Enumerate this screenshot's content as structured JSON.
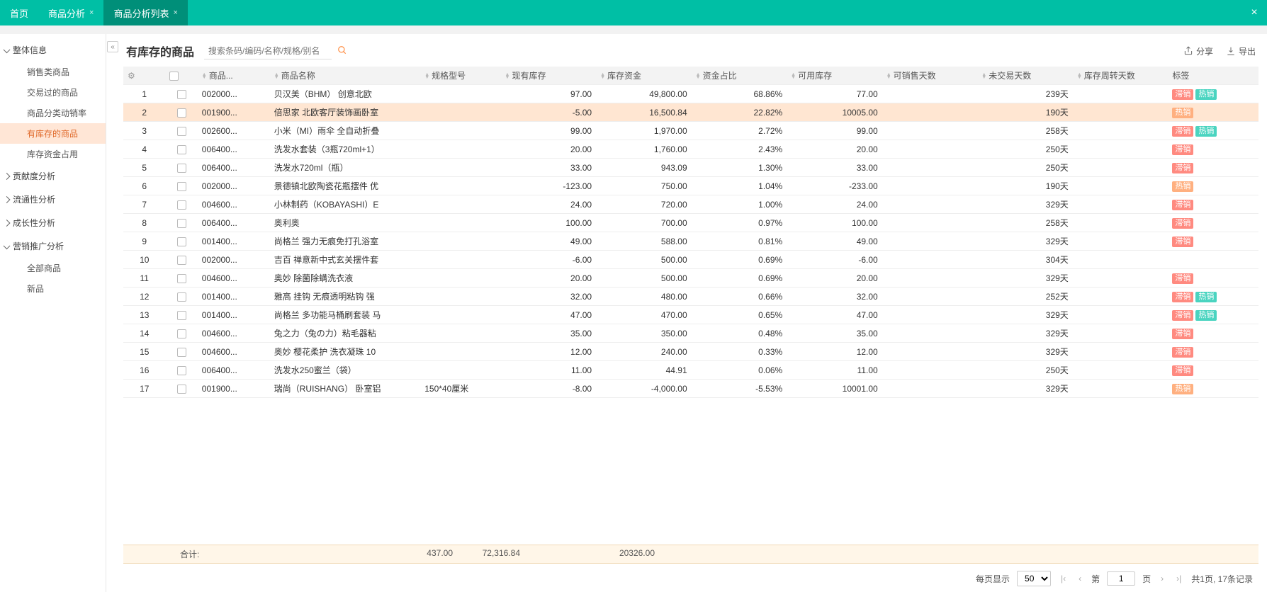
{
  "tabs": [
    {
      "label": "首页",
      "closable": false,
      "active": false
    },
    {
      "label": "商品分析",
      "closable": true,
      "active": false
    },
    {
      "label": "商品分析列表",
      "closable": true,
      "active": true
    }
  ],
  "sidebar": {
    "groups": [
      {
        "label": "整体信息",
        "open": true,
        "items": [
          {
            "label": "销售类商品",
            "active": false
          },
          {
            "label": "交易过的商品",
            "active": false
          },
          {
            "label": "商品分类动销率",
            "active": false
          },
          {
            "label": "有库存的商品",
            "active": true
          },
          {
            "label": "库存资金占用",
            "active": false
          }
        ]
      },
      {
        "label": "贡献度分析",
        "open": false,
        "items": []
      },
      {
        "label": "流通性分析",
        "open": false,
        "items": []
      },
      {
        "label": "成长性分析",
        "open": false,
        "items": []
      },
      {
        "label": "营销推广分析",
        "open": true,
        "items": [
          {
            "label": "全部商品",
            "active": false
          },
          {
            "label": "新品",
            "active": false
          }
        ]
      }
    ]
  },
  "page": {
    "title": "有库存的商品",
    "search_placeholder": "搜索条码/编码/名称/规格/别名",
    "share_label": "分享",
    "export_label": "导出"
  },
  "columns": [
    {
      "key": "idx",
      "label": "",
      "cls": "col-idx",
      "gear": true
    },
    {
      "key": "chk",
      "label": "",
      "cls": "col-chk",
      "checkbox": true
    },
    {
      "key": "code",
      "label": "商品...",
      "cls": "col-code",
      "sort": true
    },
    {
      "key": "name",
      "label": "商品名称",
      "cls": "col-name",
      "sort": true
    },
    {
      "key": "spec",
      "label": "规格型号",
      "cls": "col-spec",
      "sort": true
    },
    {
      "key": "stock",
      "label": "现有库存",
      "cls": "col-num",
      "sort": true
    },
    {
      "key": "fund",
      "label": "库存资金",
      "cls": "col-num",
      "sort": true
    },
    {
      "key": "pct",
      "label": "资金占比",
      "cls": "col-num",
      "sort": true
    },
    {
      "key": "avail",
      "label": "可用库存",
      "cls": "col-num",
      "sort": true
    },
    {
      "key": "selldays",
      "label": "可销售天数",
      "cls": "col-days",
      "sort": true
    },
    {
      "key": "notrade",
      "label": "未交易天数",
      "cls": "col-days",
      "sort": true
    },
    {
      "key": "turndays",
      "label": "库存周转天数",
      "cls": "col-days",
      "sort": true
    },
    {
      "key": "tags",
      "label": "标签",
      "cls": "col-tags"
    }
  ],
  "tag_defs": {
    "slow": {
      "text": "滞销",
      "cls": "tag-slow"
    },
    "hot_green": {
      "text": "热销",
      "cls": "tag-hot"
    },
    "hot_orange": {
      "text": "热销",
      "cls": "tag-hot-orange"
    }
  },
  "rows": [
    {
      "code": "002000...",
      "name": "贝汉美（BHM） 创意北欧",
      "spec": "",
      "stock": "97.00",
      "fund": "49,800.00",
      "pct": "68.86%",
      "avail": "77.00",
      "selldays": "",
      "notrade": "239天",
      "turndays": "",
      "tags": [
        "slow",
        "hot_green"
      ],
      "hl": false
    },
    {
      "code": "001900...",
      "name": "倍思家 北欧客厅装饰画卧室",
      "spec": "",
      "stock": "-5.00",
      "fund": "16,500.84",
      "pct": "22.82%",
      "avail": "10005.00",
      "selldays": "",
      "notrade": "190天",
      "turndays": "",
      "tags": [
        "hot_orange"
      ],
      "hl": true
    },
    {
      "code": "002600...",
      "name": "小米（MI）雨伞 全自动折叠",
      "spec": "",
      "stock": "99.00",
      "fund": "1,970.00",
      "pct": "2.72%",
      "avail": "99.00",
      "selldays": "",
      "notrade": "258天",
      "turndays": "",
      "tags": [
        "slow",
        "hot_green"
      ],
      "hl": false
    },
    {
      "code": "006400...",
      "name": "洗发水套装（3瓶720ml+1）",
      "spec": "",
      "stock": "20.00",
      "fund": "1,760.00",
      "pct": "2.43%",
      "avail": "20.00",
      "selldays": "",
      "notrade": "250天",
      "turndays": "",
      "tags": [
        "slow"
      ],
      "hl": false
    },
    {
      "code": "006400...",
      "name": "洗发水720ml（瓶）",
      "spec": "",
      "stock": "33.00",
      "fund": "943.09",
      "pct": "1.30%",
      "avail": "33.00",
      "selldays": "",
      "notrade": "250天",
      "turndays": "",
      "tags": [
        "slow"
      ],
      "hl": false
    },
    {
      "code": "002000...",
      "name": "景德镇北欧陶瓷花瓶摆件 优",
      "spec": "",
      "stock": "-123.00",
      "fund": "750.00",
      "pct": "1.04%",
      "avail": "-233.00",
      "selldays": "",
      "notrade": "190天",
      "turndays": "",
      "tags": [
        "hot_orange"
      ],
      "hl": false
    },
    {
      "code": "004600...",
      "name": "小林制药（KOBAYASHI）E",
      "spec": "",
      "stock": "24.00",
      "fund": "720.00",
      "pct": "1.00%",
      "avail": "24.00",
      "selldays": "",
      "notrade": "329天",
      "turndays": "",
      "tags": [
        "slow"
      ],
      "hl": false
    },
    {
      "code": "006400...",
      "name": "奥利奥",
      "spec": "",
      "stock": "100.00",
      "fund": "700.00",
      "pct": "0.97%",
      "avail": "100.00",
      "selldays": "",
      "notrade": "258天",
      "turndays": "",
      "tags": [
        "slow"
      ],
      "hl": false
    },
    {
      "code": "001400...",
      "name": "尚格兰 强力无痕免打孔浴室",
      "spec": "",
      "stock": "49.00",
      "fund": "588.00",
      "pct": "0.81%",
      "avail": "49.00",
      "selldays": "",
      "notrade": "329天",
      "turndays": "",
      "tags": [
        "slow"
      ],
      "hl": false
    },
    {
      "code": "002000...",
      "name": "吉百 禅意新中式玄关摆件套",
      "spec": "",
      "stock": "-6.00",
      "fund": "500.00",
      "pct": "0.69%",
      "avail": "-6.00",
      "selldays": "",
      "notrade": "304天",
      "turndays": "",
      "tags": [],
      "hl": false
    },
    {
      "code": "004600...",
      "name": "奥妙 除菌除螨洗衣液",
      "spec": "",
      "stock": "20.00",
      "fund": "500.00",
      "pct": "0.69%",
      "avail": "20.00",
      "selldays": "",
      "notrade": "329天",
      "turndays": "",
      "tags": [
        "slow"
      ],
      "hl": false
    },
    {
      "code": "001400...",
      "name": "雅高 挂钩 无痕透明粘钩 强",
      "spec": "",
      "stock": "32.00",
      "fund": "480.00",
      "pct": "0.66%",
      "avail": "32.00",
      "selldays": "",
      "notrade": "252天",
      "turndays": "",
      "tags": [
        "slow",
        "hot_green"
      ],
      "hl": false
    },
    {
      "code": "001400...",
      "name": "尚格兰 多功能马桶刷套装 马",
      "spec": "",
      "stock": "47.00",
      "fund": "470.00",
      "pct": "0.65%",
      "avail": "47.00",
      "selldays": "",
      "notrade": "329天",
      "turndays": "",
      "tags": [
        "slow",
        "hot_green"
      ],
      "hl": false
    },
    {
      "code": "004600...",
      "name": "兔之力（兔の力）粘毛器粘",
      "spec": "",
      "stock": "35.00",
      "fund": "350.00",
      "pct": "0.48%",
      "avail": "35.00",
      "selldays": "",
      "notrade": "329天",
      "turndays": "",
      "tags": [
        "slow"
      ],
      "hl": false
    },
    {
      "code": "004600...",
      "name": "奥妙 樱花柔护 洗衣凝珠 10",
      "spec": "",
      "stock": "12.00",
      "fund": "240.00",
      "pct": "0.33%",
      "avail": "12.00",
      "selldays": "",
      "notrade": "329天",
      "turndays": "",
      "tags": [
        "slow"
      ],
      "hl": false
    },
    {
      "code": "006400...",
      "name": "洗发水250蜜兰（袋）",
      "spec": "",
      "stock": "11.00",
      "fund": "44.91",
      "pct": "0.06%",
      "avail": "11.00",
      "selldays": "",
      "notrade": "250天",
      "turndays": "",
      "tags": [
        "slow"
      ],
      "hl": false
    },
    {
      "code": "001900...",
      "name": "瑞尚（RUISHANG） 卧室铝",
      "spec": "150*40厘米",
      "stock": "-8.00",
      "fund": "-4,000.00",
      "pct": "-5.53%",
      "avail": "10001.00",
      "selldays": "",
      "notrade": "329天",
      "turndays": "",
      "tags": [
        "hot_orange"
      ],
      "hl": false
    }
  ],
  "totals": {
    "label": "合计:",
    "stock": "437.00",
    "fund": "72,316.84",
    "avail": "20326.00"
  },
  "pager": {
    "per_page_label": "每页显示",
    "per_page_value": "50",
    "page_prefix": "第",
    "page_value": "1",
    "page_suffix": "页",
    "summary": "共1页, 17条记录"
  }
}
